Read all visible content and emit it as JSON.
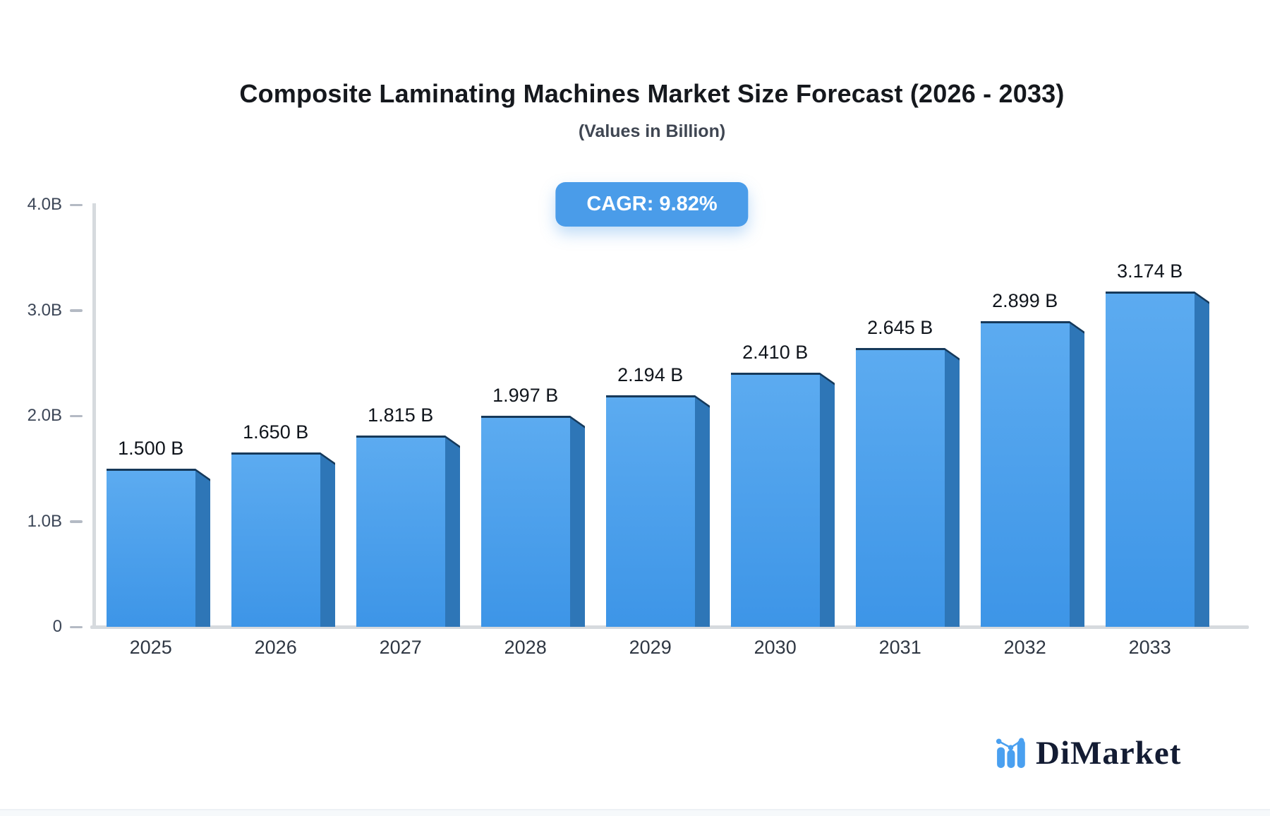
{
  "header": {
    "title": "Composite Laminating Machines Market Size Forecast (2026 - 2033)",
    "subtitle": "(Values in Billion)",
    "cagr_badge": "CAGR: 9.82%"
  },
  "chart_data": {
    "type": "bar",
    "title": "Composite Laminating Machines Market Size Forecast (2026 - 2033)",
    "subtitle": "(Values in Billion)",
    "cagr_percent": "9.82%",
    "unit": "Billion",
    "categories": [
      "2025",
      "2026",
      "2027",
      "2028",
      "2029",
      "2030",
      "2031",
      "2032",
      "2033"
    ],
    "values": [
      1.5,
      1.65,
      1.815,
      1.997,
      2.194,
      2.41,
      2.645,
      2.899,
      3.174
    ],
    "value_labels": [
      "1.500 B",
      "1.650 B",
      "1.815 B",
      "1.997 B",
      "2.194 B",
      "2.410 B",
      "2.645 B",
      "2.899 B",
      "3.174 B"
    ],
    "ylim": [
      0,
      4
    ],
    "ytick_values": [
      0,
      1,
      2,
      3,
      4
    ],
    "ytick_labels": [
      "0",
      "1.0B",
      "2.0B",
      "3.0B",
      "4.0B"
    ],
    "grid": "off",
    "legend": "none",
    "colors": {
      "bar_face_top": "#5cabf0",
      "bar_face_bottom": "#3d95e7",
      "bar_side": "#2e76b7",
      "bar_edge_dark": "#16395a",
      "badge_bg": "#4a9ce9",
      "axis_line": "#d6dade",
      "tick_dash": "#b4bac4"
    }
  },
  "branding": {
    "logo_text": "DiMarket",
    "logo_text_color": "#131c33",
    "logo_icon": "bar-chart-with-trend-dots-icon",
    "logo_icon_color": "#4aa0f0"
  }
}
